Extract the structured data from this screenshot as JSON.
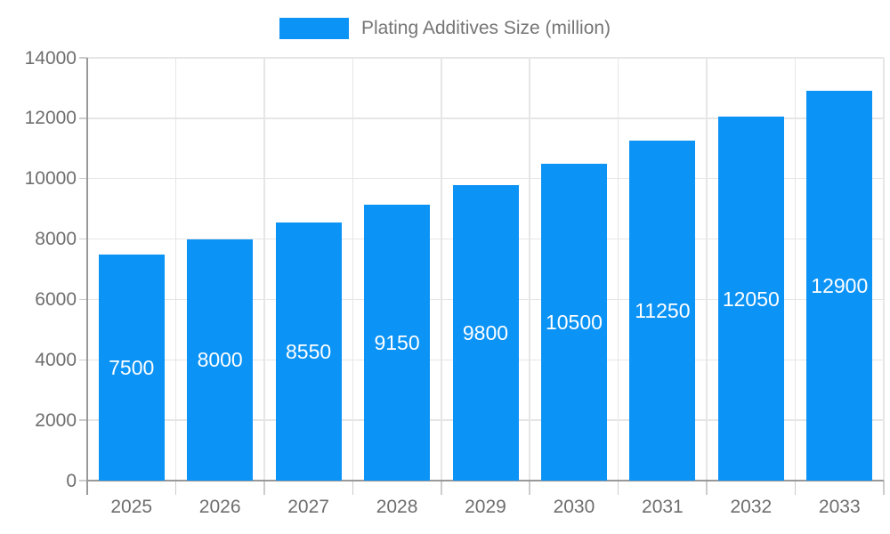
{
  "legend": {
    "label": "Plating Additives Size (million)"
  },
  "chart_data": {
    "type": "bar",
    "title": "",
    "categories": [
      "2025",
      "2026",
      "2027",
      "2028",
      "2029",
      "2030",
      "2031",
      "2032",
      "2033"
    ],
    "series": [
      {
        "name": "Plating Additives Size (million)",
        "color": "#0b93f6",
        "values": [
          7500,
          8000,
          8550,
          9150,
          9800,
          10500,
          11250,
          12050,
          12900
        ]
      }
    ],
    "value_labels": [
      "7500",
      "8000",
      "8550",
      "9150",
      "9800",
      "10500",
      "11250",
      "12050",
      "12900"
    ],
    "xlabel": "",
    "ylabel": "",
    "ylim": [
      0,
      14000
    ],
    "ytick_step": 2000,
    "ytick_labels": [
      "0",
      "2000",
      "4000",
      "6000",
      "8000",
      "10000",
      "12000",
      "14000"
    ],
    "grid": true,
    "legend_position": "top-center",
    "value_label_position": "inside-center",
    "colors": {
      "bar": "#0b93f6",
      "axis_line": "#999999",
      "tick_mark": "#cccccc",
      "gridline": "#e6e6e6",
      "axis_text": "#6e6e6e",
      "legend_text": "#757575",
      "value_text": "#ffffff",
      "background": "#ffffff"
    }
  }
}
